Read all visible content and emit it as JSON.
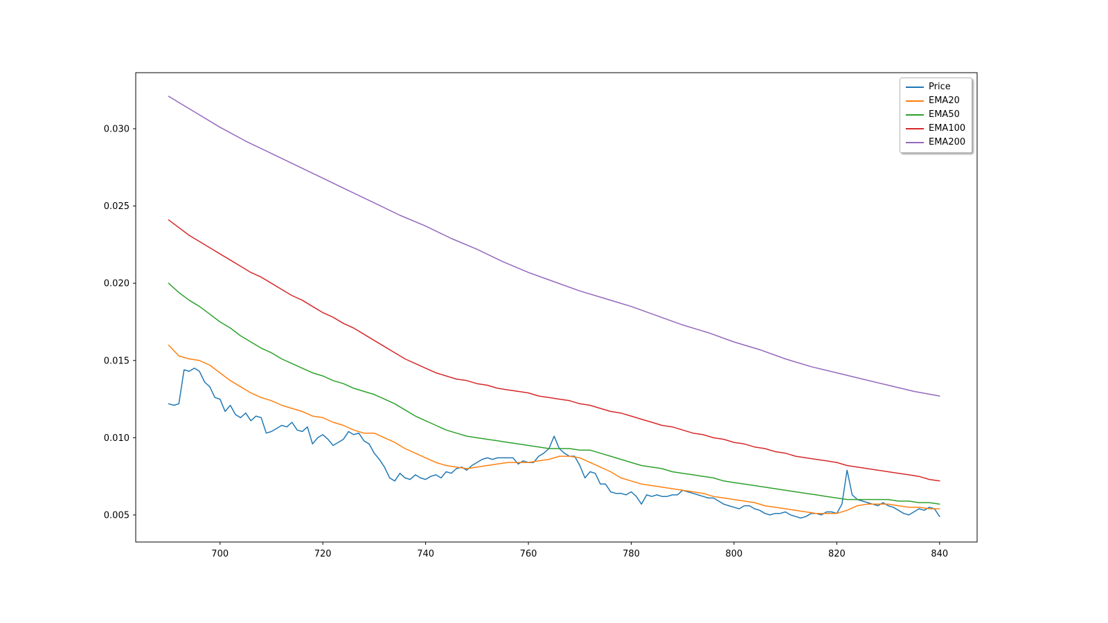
{
  "chart_data": {
    "type": "line",
    "title": "",
    "xlabel": "",
    "ylabel": "",
    "grid": false,
    "legend_position": "upper right",
    "xlim": [
      683.6,
      847.3
    ],
    "ylim": [
      0.00325,
      0.03363
    ],
    "x_ticks": [
      700,
      720,
      740,
      760,
      780,
      800,
      820,
      840
    ],
    "x_tick_labels": [
      "700",
      "720",
      "740",
      "760",
      "780",
      "800",
      "820",
      "840"
    ],
    "y_ticks": [
      0.005,
      0.01,
      0.015,
      0.02,
      0.025,
      0.03
    ],
    "y_tick_labels": [
      "0.005",
      "0.010",
      "0.015",
      "0.020",
      "0.025",
      "0.030"
    ],
    "series": [
      {
        "name": "Price",
        "color": "#1f77b4",
        "x0": 690,
        "dx": 1,
        "y": [
          0.0122,
          0.0121,
          0.0122,
          0.0144,
          0.0143,
          0.0145,
          0.0143,
          0.0136,
          0.0133,
          0.0126,
          0.0125,
          0.0117,
          0.0121,
          0.0115,
          0.0113,
          0.0116,
          0.0111,
          0.0114,
          0.0113,
          0.0103,
          0.0104,
          0.0106,
          0.0108,
          0.0107,
          0.011,
          0.0105,
          0.0104,
          0.0107,
          0.0096,
          0.01,
          0.0102,
          0.0099,
          0.0095,
          0.0097,
          0.0099,
          0.0104,
          0.0102,
          0.0103,
          0.0098,
          0.0096,
          0.009,
          0.0086,
          0.0081,
          0.0074,
          0.0072,
          0.0077,
          0.0074,
          0.0073,
          0.0076,
          0.0074,
          0.0073,
          0.0075,
          0.0076,
          0.0074,
          0.0078,
          0.0077,
          0.008,
          0.0081,
          0.0079,
          0.0082,
          0.0084,
          0.0086,
          0.0087,
          0.0086,
          0.0087,
          0.0087,
          0.0087,
          0.0087,
          0.0083,
          0.0085,
          0.0084,
          0.0084,
          0.0088,
          0.009,
          0.0093,
          0.0101,
          0.0093,
          0.009,
          0.0088,
          0.0088,
          0.0082,
          0.0074,
          0.0078,
          0.0077,
          0.007,
          0.007,
          0.0065,
          0.0064,
          0.0064,
          0.0063,
          0.0065,
          0.0062,
          0.0057,
          0.0063,
          0.0062,
          0.0063,
          0.0062,
          0.0062,
          0.0063,
          0.0063,
          0.0066,
          0.0065,
          0.0064,
          0.0063,
          0.0062,
          0.0061,
          0.0061,
          0.0059,
          0.0057,
          0.0056,
          0.0055,
          0.0054,
          0.0056,
          0.0056,
          0.0054,
          0.0053,
          0.0051,
          0.005,
          0.0051,
          0.0051,
          0.0052,
          0.005,
          0.0049,
          0.0048,
          0.0049,
          0.0051,
          0.0051,
          0.005,
          0.0052,
          0.0052,
          0.0051,
          0.0057,
          0.0079,
          0.0063,
          0.006,
          0.0059,
          0.0058,
          0.0057,
          0.0056,
          0.0058,
          0.0056,
          0.0055,
          0.0053,
          0.0051,
          0.005,
          0.0052,
          0.0054,
          0.0053,
          0.0055,
          0.0054,
          0.0049
        ]
      },
      {
        "name": "EMA20",
        "color": "#ff7f0e",
        "x0": 690,
        "dx": 2,
        "y": [
          0.016,
          0.0153,
          0.0151,
          0.015,
          0.0147,
          0.0142,
          0.0137,
          0.0133,
          0.0129,
          0.0126,
          0.0124,
          0.0121,
          0.0119,
          0.0117,
          0.0114,
          0.0113,
          0.011,
          0.0108,
          0.0105,
          0.0103,
          0.0103,
          0.01,
          0.0097,
          0.0093,
          0.009,
          0.0087,
          0.0084,
          0.0082,
          0.0081,
          0.008,
          0.0081,
          0.0082,
          0.0083,
          0.0084,
          0.0084,
          0.0084,
          0.0085,
          0.0086,
          0.0088,
          0.0088,
          0.0087,
          0.0084,
          0.0081,
          0.0078,
          0.0074,
          0.0072,
          0.007,
          0.0069,
          0.0068,
          0.0067,
          0.0066,
          0.0065,
          0.0064,
          0.0062,
          0.0061,
          0.006,
          0.0059,
          0.0058,
          0.0056,
          0.0055,
          0.0054,
          0.0053,
          0.0052,
          0.0051,
          0.0051,
          0.0051,
          0.0053,
          0.0056,
          0.0057,
          0.0057,
          0.0057,
          0.0056,
          0.0055,
          0.0055,
          0.0054,
          0.0054
        ]
      },
      {
        "name": "EMA50",
        "color": "#2ca02c",
        "x0": 690,
        "dx": 2,
        "y": [
          0.02,
          0.0194,
          0.0189,
          0.0185,
          0.018,
          0.0175,
          0.0171,
          0.0166,
          0.0162,
          0.0158,
          0.0155,
          0.0151,
          0.0148,
          0.0145,
          0.0142,
          0.014,
          0.0137,
          0.0135,
          0.0132,
          0.013,
          0.0128,
          0.0125,
          0.0122,
          0.0118,
          0.0114,
          0.0111,
          0.0108,
          0.0105,
          0.0103,
          0.0101,
          0.01,
          0.0099,
          0.0098,
          0.0097,
          0.0096,
          0.0095,
          0.0094,
          0.0093,
          0.0093,
          0.0093,
          0.0092,
          0.0092,
          0.009,
          0.0088,
          0.0086,
          0.0084,
          0.0082,
          0.0081,
          0.008,
          0.0078,
          0.0077,
          0.0076,
          0.0075,
          0.0074,
          0.0072,
          0.0071,
          0.007,
          0.0069,
          0.0068,
          0.0067,
          0.0066,
          0.0065,
          0.0064,
          0.0063,
          0.0062,
          0.0061,
          0.006,
          0.006,
          0.006,
          0.006,
          0.006,
          0.0059,
          0.0059,
          0.0058,
          0.0058,
          0.0057
        ]
      },
      {
        "name": "EMA100",
        "color": "#d62728",
        "x0": 690,
        "dx": 2,
        "y": [
          0.0241,
          0.0236,
          0.0231,
          0.0227,
          0.0223,
          0.0219,
          0.0215,
          0.0211,
          0.0207,
          0.0204,
          0.02,
          0.0196,
          0.0192,
          0.0189,
          0.0185,
          0.0181,
          0.0178,
          0.0174,
          0.0171,
          0.0167,
          0.0163,
          0.0159,
          0.0155,
          0.0151,
          0.0148,
          0.0145,
          0.0142,
          0.014,
          0.0138,
          0.0137,
          0.0135,
          0.0134,
          0.0132,
          0.0131,
          0.013,
          0.0129,
          0.0127,
          0.0126,
          0.0125,
          0.0124,
          0.0122,
          0.0121,
          0.0119,
          0.0117,
          0.0116,
          0.0114,
          0.0112,
          0.011,
          0.0108,
          0.0107,
          0.0105,
          0.0103,
          0.0102,
          0.01,
          0.0099,
          0.0097,
          0.0096,
          0.0094,
          0.0093,
          0.0091,
          0.009,
          0.0088,
          0.0087,
          0.0086,
          0.0085,
          0.0084,
          0.0082,
          0.0081,
          0.008,
          0.0079,
          0.0078,
          0.0077,
          0.0076,
          0.0075,
          0.0073,
          0.0072
        ]
      },
      {
        "name": "EMA200",
        "color": "#9467bd",
        "x0": 690,
        "dx": 5,
        "y": [
          0.0321,
          0.0311,
          0.0301,
          0.0292,
          0.0284,
          0.0276,
          0.0268,
          0.026,
          0.0252,
          0.0244,
          0.0237,
          0.0229,
          0.0222,
          0.0214,
          0.0207,
          0.0201,
          0.0195,
          0.019,
          0.0185,
          0.0179,
          0.0173,
          0.0168,
          0.0162,
          0.0157,
          0.0151,
          0.0146,
          0.0142,
          0.0138,
          0.0134,
          0.013,
          0.0127
        ]
      }
    ]
  }
}
